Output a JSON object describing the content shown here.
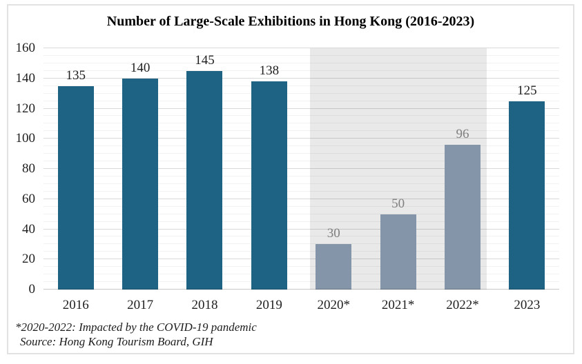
{
  "chart_data": {
    "type": "bar",
    "title": "Number of Large-Scale Exhibitions in Hong Kong (2016-2023)",
    "categories": [
      "2016",
      "2017",
      "2018",
      "2019",
      "2020*",
      "2021*",
      "2022*",
      "2023"
    ],
    "values": [
      135,
      140,
      145,
      138,
      30,
      50,
      96,
      125
    ],
    "bar_groups": [
      "normal",
      "normal",
      "normal",
      "normal",
      "covid",
      "covid",
      "covid",
      "normal"
    ],
    "ylim": [
      0,
      160
    ],
    "y_ticks": [
      0,
      20,
      40,
      60,
      80,
      100,
      120,
      140,
      160
    ],
    "y_minor_unit": 5,
    "xlabel": "",
    "ylabel": "",
    "legend": "none",
    "grid": "horizontal major+minor",
    "highlight_band": {
      "from_category": "2020*",
      "to_category": "2022*",
      "color": "#E9E9E9"
    },
    "colors": {
      "bar_normal": "#1E6384",
      "bar_covid": "#8495A9",
      "label_normal": "#1f1f1f",
      "label_covid": "#7F7F7F",
      "band": "#E9E9E9",
      "grid_major": "rgba(0,0,0,0.15)",
      "grid_minor": "rgba(0,0,0,0.05)",
      "axis_line": "rgba(0,0,0,0.22)",
      "frame_border": "#E2E2E2"
    },
    "footnote": "*2020-2022: Impacted by the COVID-19 pandemic",
    "source": "Source: Hong Kong Tourism Board, GIH"
  }
}
